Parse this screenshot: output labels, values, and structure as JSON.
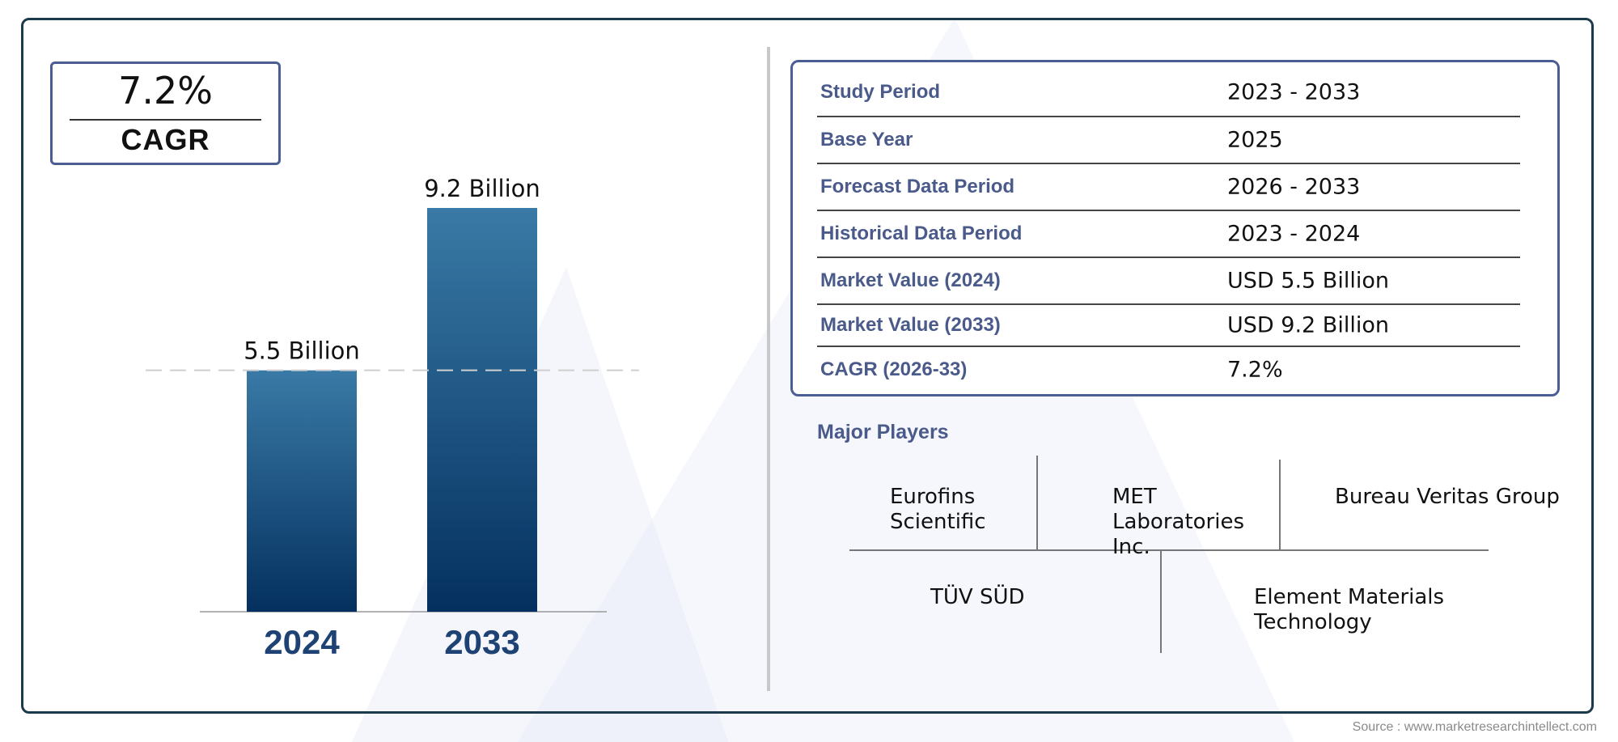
{
  "cagr_box": {
    "value": "7.2%",
    "label": "CAGR"
  },
  "chart_data": {
    "type": "bar",
    "categories": [
      "2024",
      "2033"
    ],
    "values": [
      5.5,
      9.2
    ],
    "data_labels": [
      "5.5 Billion",
      "9.2 Billion"
    ],
    "title": "",
    "xlabel": "",
    "ylabel": "",
    "ylim": [
      0,
      9.2
    ],
    "grid": false,
    "reference_line": 5.5,
    "bar_color_top": "#3a7aa6",
    "bar_color_bottom": "#04305f",
    "tick_label_color": "#1d4273"
  },
  "summary_table": [
    {
      "label": "Study Period",
      "value": "2023 - 2033"
    },
    {
      "label": "Base Year",
      "value": "2025"
    },
    {
      "label": "Forecast Data Period",
      "value": "2026 - 2033"
    },
    {
      "label": "Historical Data Period",
      "value": "2023 - 2024"
    },
    {
      "label": "Market Value (2024)",
      "value": "USD 5.5 Billion"
    },
    {
      "label": "Market Value (2033)",
      "value": "USD 9.2 Billion"
    },
    {
      "label": "CAGR (2026-33)",
      "value": "7.2%"
    }
  ],
  "major_players": {
    "title": "Major Players",
    "players": [
      "Eurofins Scientific",
      "MET Laboratories Inc.",
      "Bureau Veritas Group",
      "TÜV SÜD",
      "Element Materials Technology"
    ]
  },
  "source": "Source : www.marketresearchintellect.com",
  "colors": {
    "frame": "#1b3a4b",
    "accent": "#4a5e93",
    "label_text": "#4a5a8a"
  }
}
